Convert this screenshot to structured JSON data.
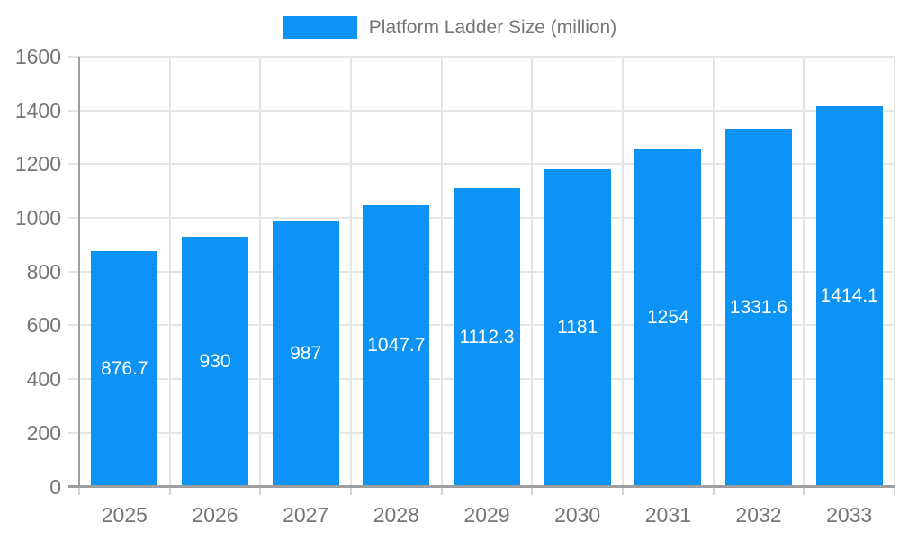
{
  "chart_data": {
    "type": "bar",
    "title": "Platform Ladder Size (million)",
    "legend": "Platform Ladder Size (million)",
    "legend_position": "top",
    "categories": [
      "2025",
      "2026",
      "2027",
      "2028",
      "2029",
      "2030",
      "2031",
      "2032",
      "2033"
    ],
    "series": [
      {
        "name": "Platform Ladder Size (million)",
        "values": [
          876.7,
          930,
          987,
          1047.7,
          1112.3,
          1181,
          1254,
          1331.6,
          1414.1
        ]
      }
    ],
    "value_labels": [
      "876.7",
      "930",
      "987",
      "1047.7",
      "1112.3",
      "1181",
      "1254",
      "1331.6",
      "1414.1"
    ],
    "xlabel": "",
    "ylabel": "",
    "ylim": [
      0,
      1600
    ],
    "ytick_step": 200,
    "ytick_labels": [
      "0",
      "200",
      "400",
      "600",
      "800",
      "1000",
      "1200",
      "1400",
      "1600"
    ],
    "grid": true,
    "colors": {
      "bar": "#0d92f5",
      "grid": "#e5e5e5",
      "axis": "#9e9e9e",
      "tick": "#d2d2d2",
      "axis_text": "#757575",
      "value_text": "#ffffff",
      "background": "#ffffff"
    }
  }
}
